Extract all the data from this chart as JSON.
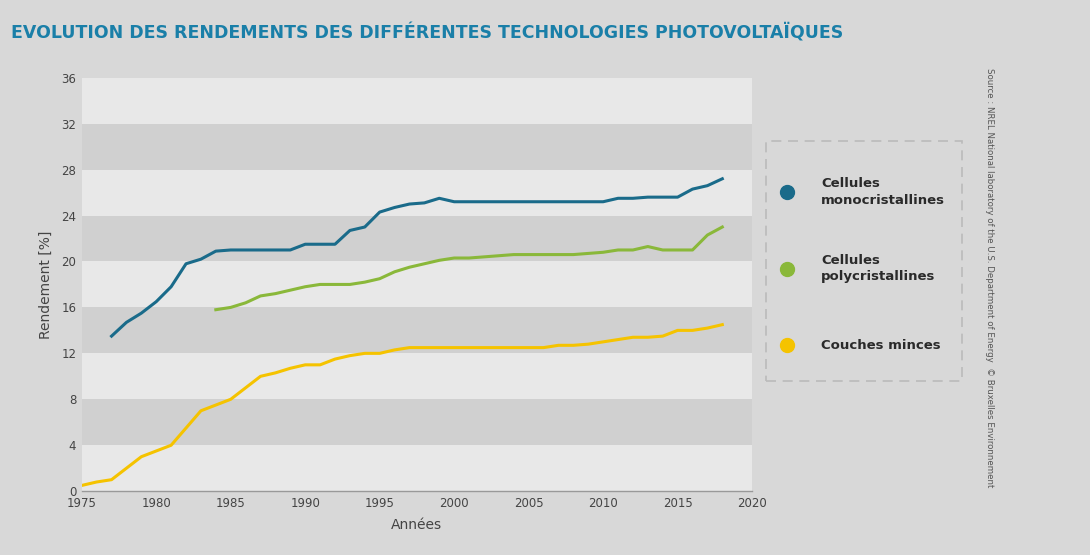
{
  "title": "EVOLUTION DES RENDEMENTS DES DIFFÉRENTES TECHNOLOGIES PHOTOVOLTAÏQUES",
  "title_bg_color": "#ffffff",
  "title_color": "#1a7fa8",
  "plot_bg_color": "#e0e0e0",
  "fig_bg_color": "#d8d8d8",
  "xlabel": "Années",
  "ylabel": "Rendement [%]",
  "xlim": [
    1975,
    2020
  ],
  "ylim": [
    0,
    36
  ],
  "yticks": [
    0,
    4,
    8,
    12,
    16,
    20,
    24,
    28,
    32,
    36
  ],
  "xticks": [
    1975,
    1980,
    1985,
    1990,
    1995,
    2000,
    2005,
    2010,
    2015,
    2020
  ],
  "mono_color": "#1a6b8a",
  "poly_color": "#8ab83a",
  "thin_color": "#f5c300",
  "source_text": "Source : NREL National laboratory of the U.S. Department of Energy  © Bruxelles Environnement",
  "band_light": "#e8e8e8",
  "band_dark": "#d0d0d0",
  "mono_x": [
    1977,
    1978,
    1979,
    1980,
    1981,
    1982,
    1983,
    1984,
    1985,
    1986,
    1987,
    1988,
    1989,
    1990,
    1991,
    1992,
    1993,
    1994,
    1995,
    1996,
    1997,
    1998,
    1999,
    2000,
    2001,
    2002,
    2003,
    2004,
    2005,
    2006,
    2007,
    2008,
    2009,
    2010,
    2011,
    2012,
    2013,
    2014,
    2015,
    2016,
    2017,
    2018
  ],
  "mono_y": [
    13.5,
    14.7,
    15.5,
    16.5,
    17.8,
    19.8,
    20.2,
    20.9,
    21.0,
    21.0,
    21.0,
    21.0,
    21.0,
    21.5,
    21.5,
    21.5,
    22.7,
    23.0,
    24.3,
    24.7,
    25.0,
    25.1,
    25.5,
    25.2,
    25.2,
    25.2,
    25.2,
    25.2,
    25.2,
    25.2,
    25.2,
    25.2,
    25.2,
    25.2,
    25.5,
    25.5,
    25.6,
    25.6,
    25.6,
    26.3,
    26.6,
    27.2
  ],
  "poly_x": [
    1984,
    1985,
    1986,
    1987,
    1988,
    1989,
    1990,
    1991,
    1992,
    1993,
    1994,
    1995,
    1996,
    1997,
    1998,
    1999,
    2000,
    2001,
    2002,
    2003,
    2004,
    2005,
    2006,
    2007,
    2008,
    2009,
    2010,
    2011,
    2012,
    2013,
    2014,
    2015,
    2016,
    2017,
    2018
  ],
  "poly_y": [
    15.8,
    16.0,
    16.4,
    17.0,
    17.2,
    17.5,
    17.8,
    18.0,
    18.0,
    18.0,
    18.2,
    18.5,
    19.1,
    19.5,
    19.8,
    20.1,
    20.3,
    20.3,
    20.4,
    20.5,
    20.6,
    20.6,
    20.6,
    20.6,
    20.6,
    20.7,
    20.8,
    21.0,
    21.0,
    21.3,
    21.0,
    21.0,
    21.0,
    22.3,
    23.0
  ],
  "thin_x": [
    1975,
    1976,
    1977,
    1978,
    1979,
    1980,
    1981,
    1982,
    1983,
    1984,
    1985,
    1986,
    1987,
    1988,
    1989,
    1990,
    1991,
    1992,
    1993,
    1994,
    1995,
    1996,
    1997,
    1998,
    1999,
    2000,
    2001,
    2002,
    2003,
    2004,
    2005,
    2006,
    2007,
    2008,
    2009,
    2010,
    2011,
    2012,
    2013,
    2014,
    2015,
    2016,
    2017,
    2018
  ],
  "thin_y": [
    0.5,
    0.8,
    1.0,
    2.0,
    3.0,
    3.5,
    4.0,
    5.5,
    7.0,
    7.5,
    8.0,
    9.0,
    10.0,
    10.3,
    10.7,
    11.0,
    11.0,
    11.5,
    11.8,
    12.0,
    12.0,
    12.3,
    12.5,
    12.5,
    12.5,
    12.5,
    12.5,
    12.5,
    12.5,
    12.5,
    12.5,
    12.5,
    12.7,
    12.7,
    12.8,
    13.0,
    13.2,
    13.4,
    13.4,
    13.5,
    14.0,
    14.0,
    14.2,
    14.5
  ]
}
